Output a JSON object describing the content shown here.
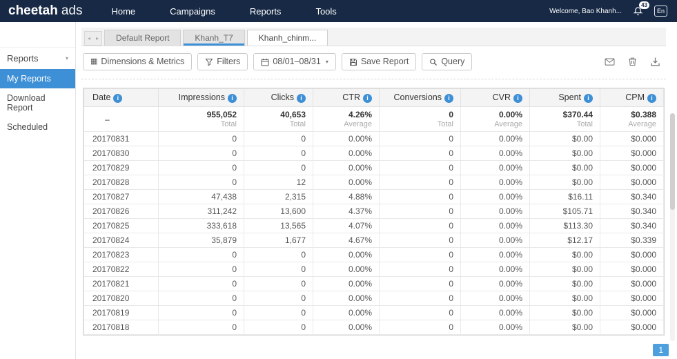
{
  "colors": {
    "accent": "#3d8fd6",
    "navbar": "#172945",
    "pagination": "#4da0dd"
  },
  "icons": {
    "grid": "▦",
    "caret_down": "▾",
    "chevron_down": "▾",
    "tab_prev": "◂",
    "tab_next": "▸",
    "info": "i"
  },
  "navbar": {
    "brand_bold": "cheetah",
    "brand_light": "ads",
    "menu": [
      "Home",
      "Campaigns",
      "Reports",
      "Tools"
    ],
    "welcome_label": "Welcome,",
    "username": "Bao Khanh...",
    "notification_count": "43",
    "language": "En"
  },
  "sidebar": {
    "section": "Reports",
    "items": [
      {
        "label": "My Reports",
        "active": true
      },
      {
        "label": "Download Report",
        "active": false
      },
      {
        "label": "Scheduled",
        "active": false
      }
    ]
  },
  "tabs": [
    {
      "label": "Default Report",
      "active": false
    },
    {
      "label": "Khanh_T7",
      "active": false
    },
    {
      "label": "Khanh_chinm...",
      "active": true
    }
  ],
  "toolbar": {
    "dimensions_metrics": "Dimensions & Metrics",
    "filters": "Filters",
    "date_range": "08/01–08/31",
    "save_report": "Save Report",
    "query": "Query"
  },
  "table": {
    "columns": [
      "Date",
      "Impressions",
      "Clicks",
      "CTR",
      "Conversions",
      "CVR",
      "Spent",
      "CPM"
    ],
    "totals": {
      "date": "–",
      "values": [
        "955,052",
        "40,653",
        "4.26%",
        "0",
        "0.00%",
        "$370.44",
        "$0.388"
      ],
      "sublabels": [
        "Total",
        "Total",
        "Average",
        "Total",
        "Average",
        "Total",
        "Average"
      ]
    },
    "rows": [
      [
        "20170831",
        "0",
        "0",
        "0.00%",
        "0",
        "0.00%",
        "$0.00",
        "$0.000"
      ],
      [
        "20170830",
        "0",
        "0",
        "0.00%",
        "0",
        "0.00%",
        "$0.00",
        "$0.000"
      ],
      [
        "20170829",
        "0",
        "0",
        "0.00%",
        "0",
        "0.00%",
        "$0.00",
        "$0.000"
      ],
      [
        "20170828",
        "0",
        "12",
        "0.00%",
        "0",
        "0.00%",
        "$0.00",
        "$0.000"
      ],
      [
        "20170827",
        "47,438",
        "2,315",
        "4.88%",
        "0",
        "0.00%",
        "$16.11",
        "$0.340"
      ],
      [
        "20170826",
        "311,242",
        "13,600",
        "4.37%",
        "0",
        "0.00%",
        "$105.71",
        "$0.340"
      ],
      [
        "20170825",
        "333,618",
        "13,565",
        "4.07%",
        "0",
        "0.00%",
        "$113.30",
        "$0.340"
      ],
      [
        "20170824",
        "35,879",
        "1,677",
        "4.67%",
        "0",
        "0.00%",
        "$12.17",
        "$0.339"
      ],
      [
        "20170823",
        "0",
        "0",
        "0.00%",
        "0",
        "0.00%",
        "$0.00",
        "$0.000"
      ],
      [
        "20170822",
        "0",
        "0",
        "0.00%",
        "0",
        "0.00%",
        "$0.00",
        "$0.000"
      ],
      [
        "20170821",
        "0",
        "0",
        "0.00%",
        "0",
        "0.00%",
        "$0.00",
        "$0.000"
      ],
      [
        "20170820",
        "0",
        "0",
        "0.00%",
        "0",
        "0.00%",
        "$0.00",
        "$0.000"
      ],
      [
        "20170819",
        "0",
        "0",
        "0.00%",
        "0",
        "0.00%",
        "$0.00",
        "$0.000"
      ],
      [
        "20170818",
        "0",
        "0",
        "0.00%",
        "0",
        "0.00%",
        "$0.00",
        "$0.000"
      ]
    ]
  },
  "pagination": {
    "page": "1"
  }
}
